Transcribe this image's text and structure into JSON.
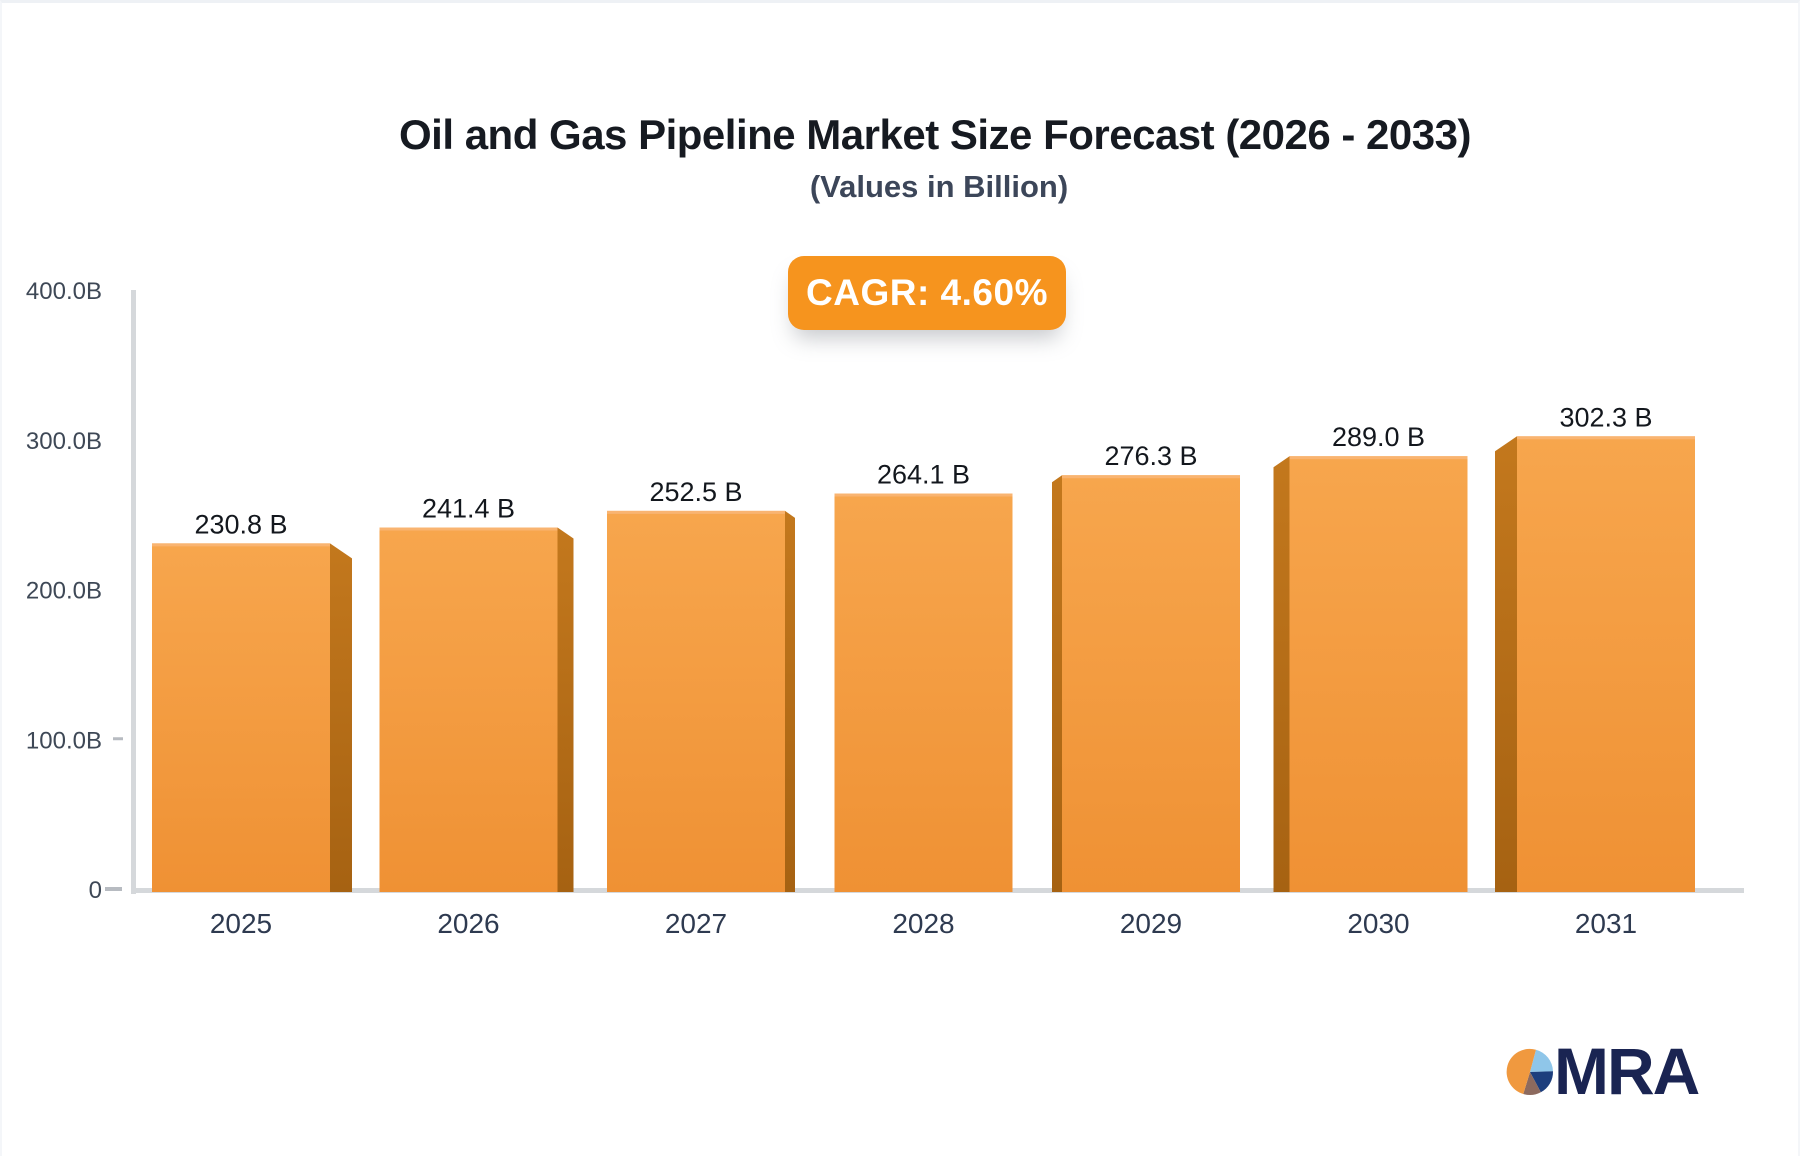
{
  "header": {
    "title": "Oil and Gas Pipeline Market Size Forecast (2026 - 2033)",
    "subtitle": "(Values in Billion)"
  },
  "badge": {
    "label": "CAGR: 4.60%",
    "color": "#f6941e"
  },
  "chart_data": {
    "type": "bar",
    "title": "Oil and Gas Pipeline Market Size Forecast (2026 - 2033)",
    "subtitle": "(Values in Billion)",
    "cagr_label": "CAGR: 4.60%",
    "categories": [
      "2025",
      "2026",
      "2027",
      "2028",
      "2029",
      "2030",
      "2031"
    ],
    "values": [
      230.8,
      241.4,
      252.5,
      264.1,
      276.3,
      289.0,
      302.3
    ],
    "value_labels": [
      "230.8 B",
      "241.4 B",
      "252.5 B",
      "264.1 B",
      "276.3 B",
      "289.0 B",
      "302.3 B"
    ],
    "yticks": [
      {
        "value": 400,
        "label": "400.0B"
      },
      {
        "value": 300,
        "label": "300.0B"
      },
      {
        "value": 200,
        "label": "200.0B"
      },
      {
        "value": 100,
        "label": "100.0B"
      },
      {
        "value": 0,
        "label": "0"
      }
    ],
    "ylim": [
      0,
      400
    ],
    "xlabel": "",
    "ylabel": "",
    "grid": false,
    "legend": false,
    "bar_style_3d": true,
    "bar_color_top": "#f7a64d",
    "bar_color_bottom": "#ef9134",
    "bar_side_color": "#b06a16",
    "axis_color": "#d5d8db",
    "value_label_color": "#13171d"
  },
  "logo": {
    "text": "MRA"
  }
}
